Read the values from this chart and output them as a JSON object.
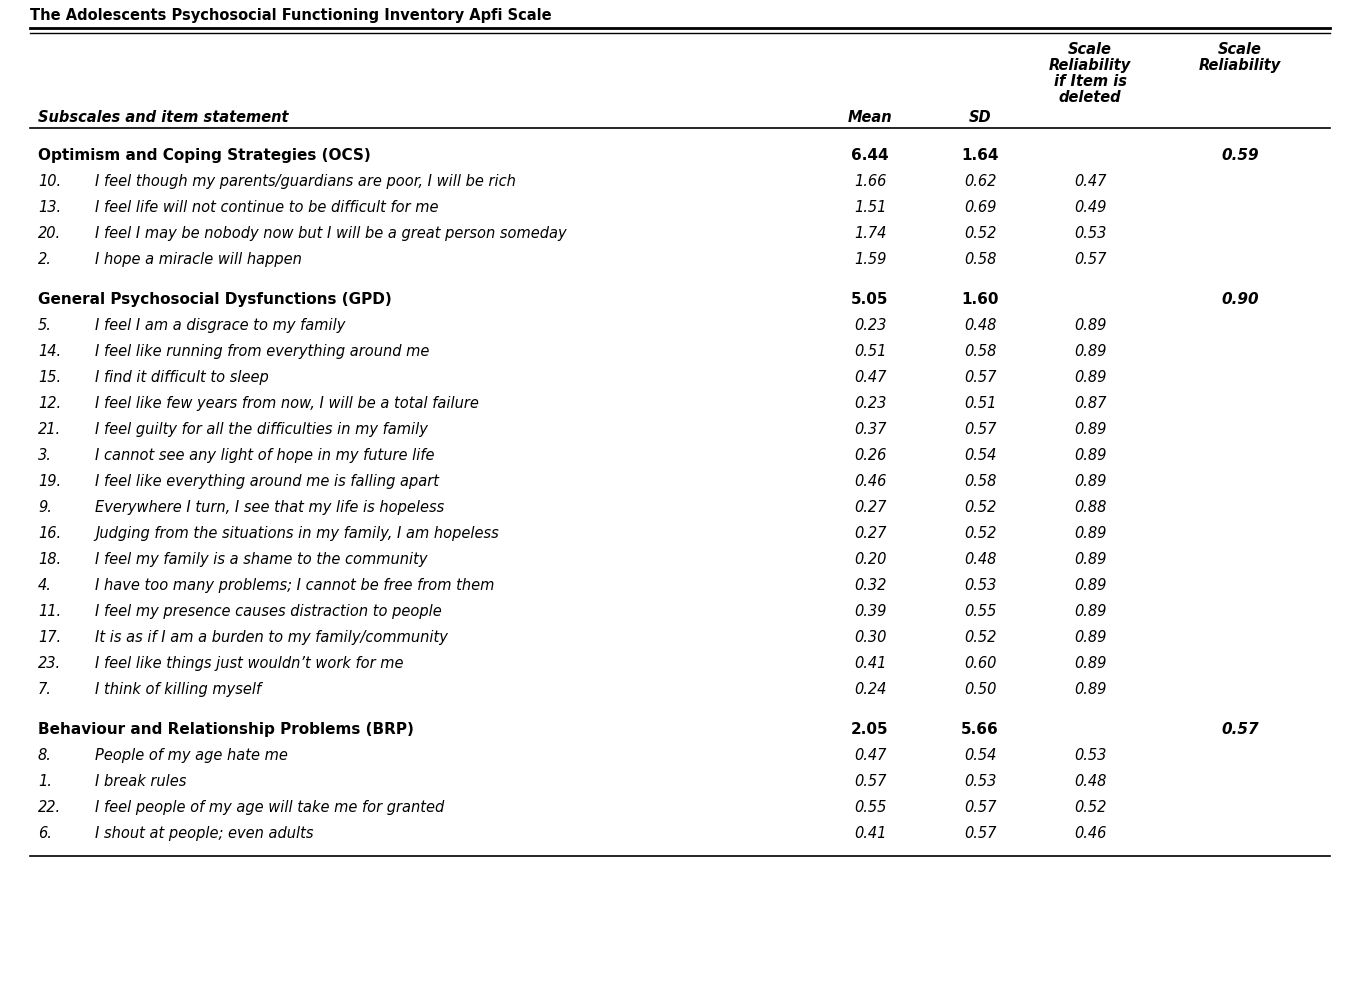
{
  "title": "The Adolescents Psychosocial Functioning Inventory Apfi Scale",
  "header_col1": "Subscales and item statement",
  "header_mean": "Mean",
  "header_sd": "SD",
  "header_col3_lines": [
    "Scale",
    "Reliability",
    "if Item is",
    "deleted"
  ],
  "header_col4_lines": [
    "Scale",
    "Reliability"
  ],
  "rows": [
    {
      "type": "section",
      "label": "Optimism and Coping Strategies (OCS)",
      "mean": "6.44",
      "sd": "1.64",
      "if_deleted": "",
      "scale_rel": "0.59"
    },
    {
      "type": "item",
      "num": "10.",
      "label": "I feel though my parents/guardians are poor, I will be rich",
      "mean": "1.66",
      "sd": "0.62",
      "if_deleted": "0.47",
      "scale_rel": ""
    },
    {
      "type": "item",
      "num": "13.",
      "label": "I feel life will not continue to be difficult for me",
      "mean": "1.51",
      "sd": "0.69",
      "if_deleted": "0.49",
      "scale_rel": ""
    },
    {
      "type": "item",
      "num": "20.",
      "label": "I feel I may be nobody now but I will be a great person someday",
      "mean": "1.74",
      "sd": "0.52",
      "if_deleted": "0.53",
      "scale_rel": ""
    },
    {
      "type": "item",
      "num": "2.",
      "label": "I hope a miracle will happen",
      "mean": "1.59",
      "sd": "0.58",
      "if_deleted": "0.57",
      "scale_rel": ""
    },
    {
      "type": "blank"
    },
    {
      "type": "section",
      "label": "General Psychosocial Dysfunctions (GPD)",
      "mean": "5.05",
      "sd": "1.60",
      "if_deleted": "",
      "scale_rel": "0.90"
    },
    {
      "type": "item",
      "num": "5.",
      "label": "I feel I am a disgrace to my family",
      "mean": "0.23",
      "sd": "0.48",
      "if_deleted": "0.89",
      "scale_rel": ""
    },
    {
      "type": "item",
      "num": "14.",
      "label": "I feel like running from everything around me",
      "mean": "0.51",
      "sd": "0.58",
      "if_deleted": "0.89",
      "scale_rel": ""
    },
    {
      "type": "item",
      "num": "15.",
      "label": "I find it difficult to sleep",
      "mean": "0.47",
      "sd": "0.57",
      "if_deleted": "0.89",
      "scale_rel": ""
    },
    {
      "type": "item",
      "num": "12.",
      "label": "I feel like few years from now, I will be a total failure",
      "mean": "0.23",
      "sd": "0.51",
      "if_deleted": "0.87",
      "scale_rel": ""
    },
    {
      "type": "item",
      "num": "21.",
      "label": "I feel guilty for all the difficulties in my family",
      "mean": "0.37",
      "sd": "0.57",
      "if_deleted": "0.89",
      "scale_rel": ""
    },
    {
      "type": "item",
      "num": "3.",
      "label": "I cannot see any light of hope in my future life",
      "mean": "0.26",
      "sd": "0.54",
      "if_deleted": "0.89",
      "scale_rel": ""
    },
    {
      "type": "item",
      "num": "19.",
      "label": "I feel like everything around me is falling apart",
      "mean": "0.46",
      "sd": "0.58",
      "if_deleted": "0.89",
      "scale_rel": ""
    },
    {
      "type": "item",
      "num": "9.",
      "label": "Everywhere I turn, I see that my life is hopeless",
      "mean": "0.27",
      "sd": "0.52",
      "if_deleted": "0.88",
      "scale_rel": ""
    },
    {
      "type": "item",
      "num": "16.",
      "label": "Judging from the situations in my family, I am hopeless",
      "mean": "0.27",
      "sd": "0.52",
      "if_deleted": "0.89",
      "scale_rel": ""
    },
    {
      "type": "item",
      "num": "18.",
      "label": "I feel my family is a shame to the community",
      "mean": "0.20",
      "sd": "0.48",
      "if_deleted": "0.89",
      "scale_rel": ""
    },
    {
      "type": "item",
      "num": "4.",
      "label": "I have too many problems; I cannot be free from them",
      "mean": "0.32",
      "sd": "0.53",
      "if_deleted": "0.89",
      "scale_rel": ""
    },
    {
      "type": "item",
      "num": "11.",
      "label": "I feel my presence causes distraction to people",
      "mean": "0.39",
      "sd": "0.55",
      "if_deleted": "0.89",
      "scale_rel": ""
    },
    {
      "type": "item",
      "num": "17.",
      "label": "It is as if I am a burden to my family/community",
      "mean": "0.30",
      "sd": "0.52",
      "if_deleted": "0.89",
      "scale_rel": ""
    },
    {
      "type": "item",
      "num": "23.",
      "label": "I feel like things just wouldn’t work for me",
      "mean": "0.41",
      "sd": "0.60",
      "if_deleted": "0.89",
      "scale_rel": ""
    },
    {
      "type": "item",
      "num": "7.",
      "label": "I think of killing myself",
      "mean": "0.24",
      "sd": "0.50",
      "if_deleted": "0.89",
      "scale_rel": ""
    },
    {
      "type": "blank"
    },
    {
      "type": "section",
      "label": "Behaviour and Relationship Problems (BRP)",
      "mean": "2.05",
      "sd": "5.66",
      "if_deleted": "",
      "scale_rel": "0.57"
    },
    {
      "type": "item",
      "num": "8.",
      "label": "People of my age hate me",
      "mean": "0.47",
      "sd": "0.54",
      "if_deleted": "0.53",
      "scale_rel": ""
    },
    {
      "type": "item",
      "num": "1.",
      "label": "I break rules",
      "mean": "0.57",
      "sd": "0.53",
      "if_deleted": "0.48",
      "scale_rel": ""
    },
    {
      "type": "item",
      "num": "22.",
      "label": "I feel people of my age will take me for granted",
      "mean": "0.55",
      "sd": "0.57",
      "if_deleted": "0.52",
      "scale_rel": ""
    },
    {
      "type": "item",
      "num": "6.",
      "label": "I shout at people; even adults",
      "mean": "0.41",
      "sd": "0.57",
      "if_deleted": "0.46",
      "scale_rel": ""
    }
  ],
  "bg_color": "#ffffff",
  "text_color": "#000000",
  "font_size": 10.5,
  "section_font_size": 11
}
